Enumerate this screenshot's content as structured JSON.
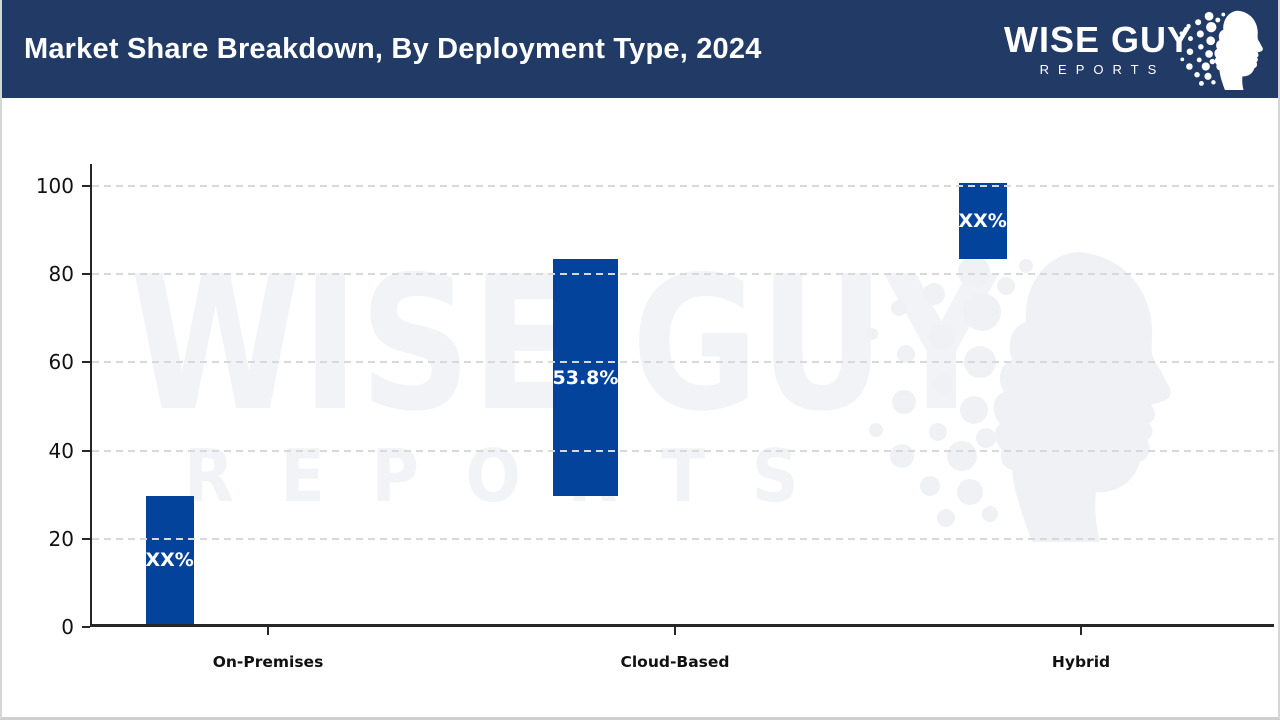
{
  "header": {
    "title": "Market Share Breakdown, By Deployment Type, 2024",
    "logo": {
      "line1": "WISE GUY",
      "line2": "REPORTS"
    }
  },
  "watermark": {
    "line1": "WISE GUY",
    "line2": "REPORTS"
  },
  "colors": {
    "header_bg": "#213a66",
    "bar": "#04439c",
    "bar_label": "#ffffff",
    "grid": "#d9d9d9",
    "axis": "#262626",
    "watermark": "#f2f3f6",
    "title_text": "#ffffff"
  },
  "chart_data": {
    "type": "bar",
    "subtype": "floating-segment-bars",
    "title": "Market Share Breakdown, By Deployment Type, 2024",
    "categories": [
      "On-Premises",
      "Cloud-Based",
      "Hybrid"
    ],
    "series": [
      {
        "category": "On-Premises",
        "start": 0,
        "end": 29,
        "label": "XX%"
      },
      {
        "category": "Cloud-Based",
        "start": 29,
        "end": 82.8,
        "label": "53.8%"
      },
      {
        "category": "Hybrid",
        "start": 82.8,
        "end": 100,
        "label": "XX%"
      }
    ],
    "xlabel": "",
    "ylabel": "",
    "yticks": [
      0,
      20,
      40,
      60,
      80,
      100
    ],
    "ylim": [
      0,
      105
    ],
    "grid": "horizontal dashed, drawn over bars",
    "legend": "none"
  }
}
